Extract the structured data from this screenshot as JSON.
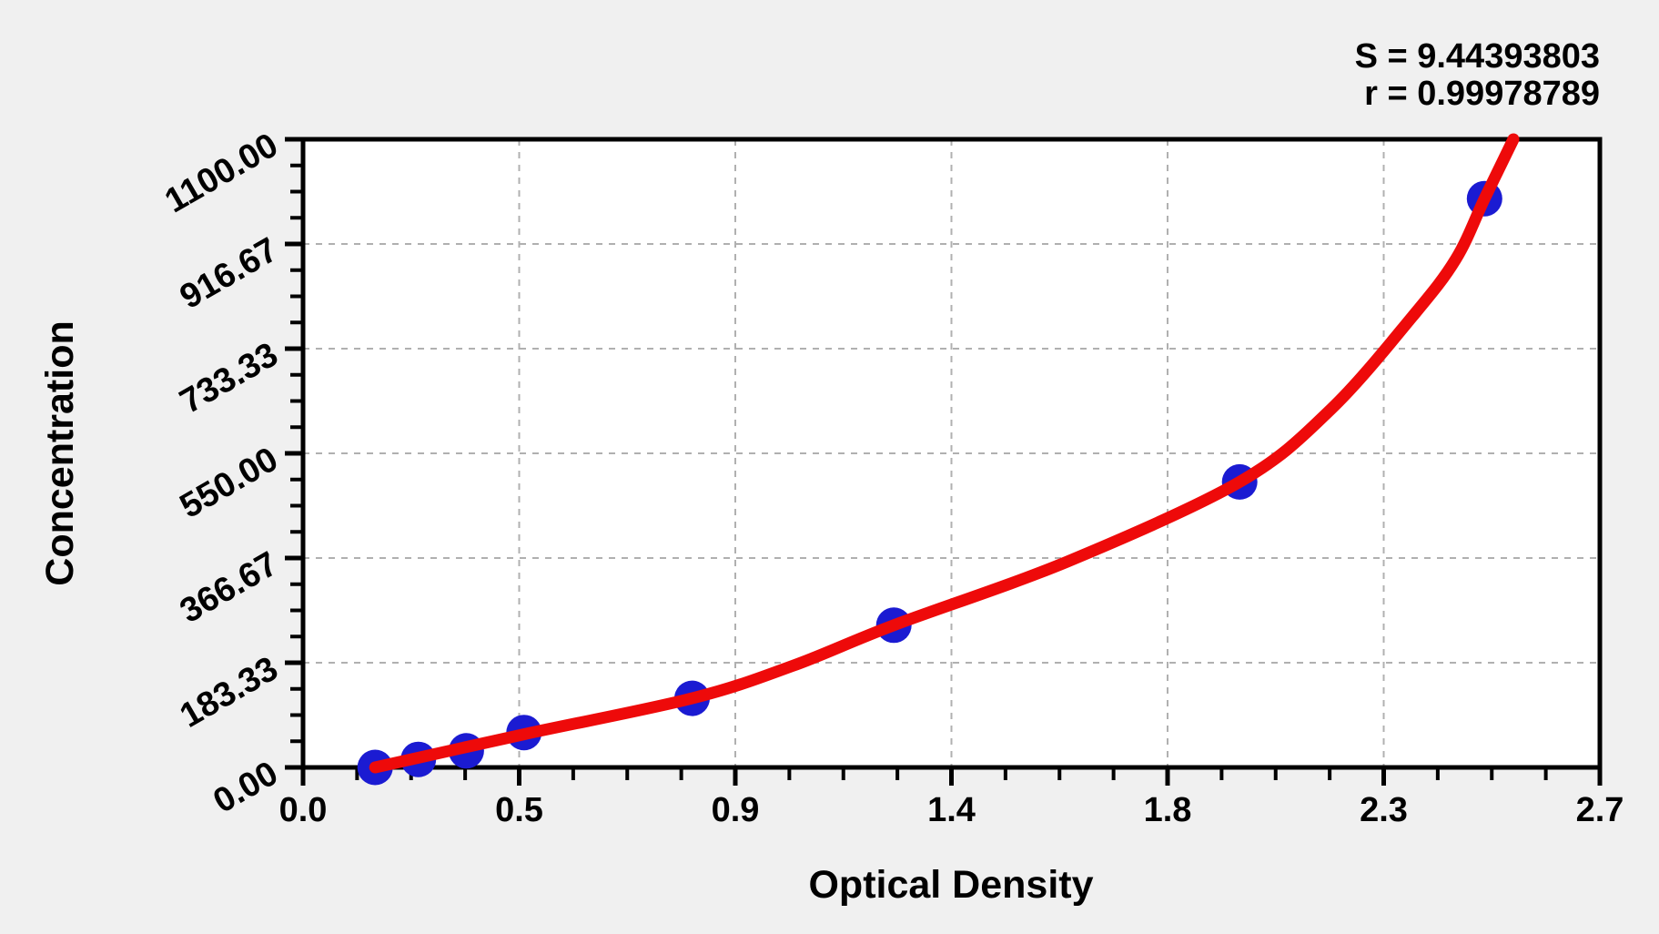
{
  "background_color": "#f0f0f0",
  "stats": {
    "s_label": "S = 9.44393803",
    "r_label": "r = 0.99978789"
  },
  "chart_data": {
    "type": "scatter",
    "title": "",
    "xlabel": "Optical Density",
    "ylabel": "Concentration",
    "xlim": [
      0,
      2.7
    ],
    "ylim": [
      0,
      1100
    ],
    "grid": "dashed gray lines at every major tick, plot framed by solid black border",
    "grid_color": "#b0b0b0",
    "axis_color": "#000000",
    "plot_bg_color": "#ffffff",
    "page_bg_color": "#f0f0f0",
    "legend": "none",
    "x_ticks": {
      "values": [
        0,
        0.45,
        0.9,
        1.35,
        1.8,
        2.25,
        2.7
      ],
      "labels": [
        "0.0",
        "0.5",
        "0.9",
        "1.4",
        "1.8",
        "2.3",
        "2.7"
      ],
      "minors_between_majors": 3
    },
    "y_ticks": {
      "values": [
        0,
        183.33,
        366.67,
        550,
        733.33,
        916.67,
        1100
      ],
      "labels": [
        "0.00",
        "183.33",
        "366.67",
        "550.00",
        "733.33",
        "916.67",
        "1100.00"
      ],
      "minors_between_majors": 3,
      "label_rotation_deg": -30
    },
    "annotations": [
      "S = 9.44393803",
      "r = 0.99978789"
    ],
    "series": [
      {
        "name": "standard-points",
        "type": "scatter",
        "color": "#1b1bd2",
        "marker": "circle",
        "x": [
          0.15,
          0.24,
          0.34,
          0.46,
          0.81,
          1.23,
          1.95,
          2.46
        ],
        "y": [
          0,
          14,
          29,
          61,
          121,
          249,
          500,
          996
        ]
      },
      {
        "name": "fitted-curve",
        "type": "line",
        "color": "#ee0a0a",
        "x": [
          0.15,
          0.46,
          0.81,
          1.02,
          1.23,
          1.59,
          1.95,
          2.14,
          2.31,
          2.4,
          2.46,
          2.52
        ],
        "y": [
          0,
          58,
          121,
          178,
          249,
          360,
          500,
          627,
          790,
          890,
          996,
          1100
        ]
      }
    ]
  }
}
